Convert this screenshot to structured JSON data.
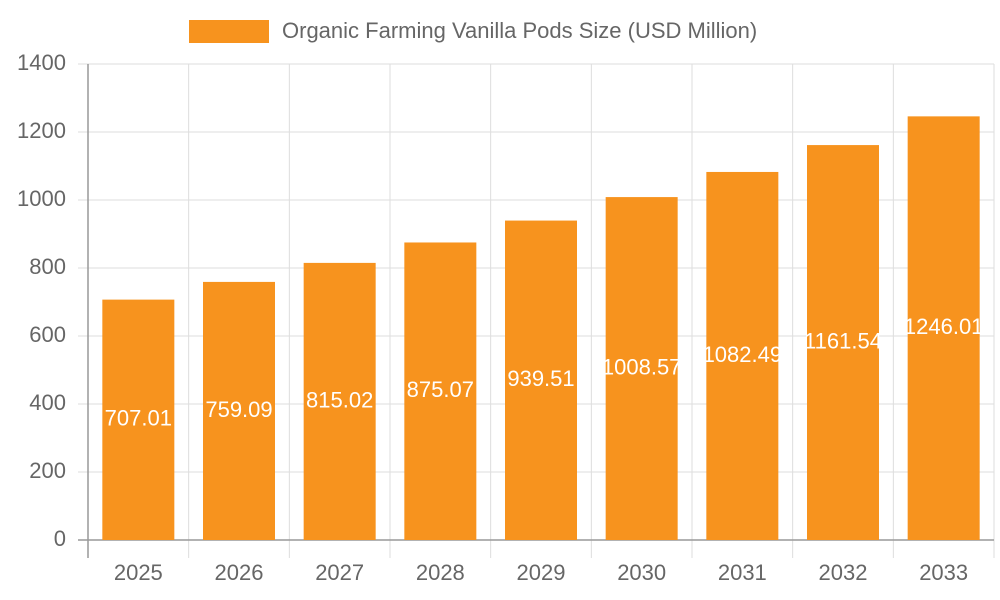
{
  "chart_data": {
    "type": "bar",
    "categories": [
      "2025",
      "2026",
      "2027",
      "2028",
      "2029",
      "2030",
      "2031",
      "2032",
      "2033"
    ],
    "series": [
      {
        "name": "Organic Farming Vanilla Pods Size (USD Million)",
        "color": "#f7931e",
        "values": [
          707.01,
          759.09,
          815.02,
          875.07,
          939.51,
          1008.57,
          1082.49,
          1161.54,
          1246.01
        ]
      }
    ],
    "ylim": [
      0,
      1400
    ],
    "yticks": [
      0,
      200,
      400,
      600,
      800,
      1000,
      1200,
      1400
    ],
    "grid": true,
    "legend": "top"
  }
}
